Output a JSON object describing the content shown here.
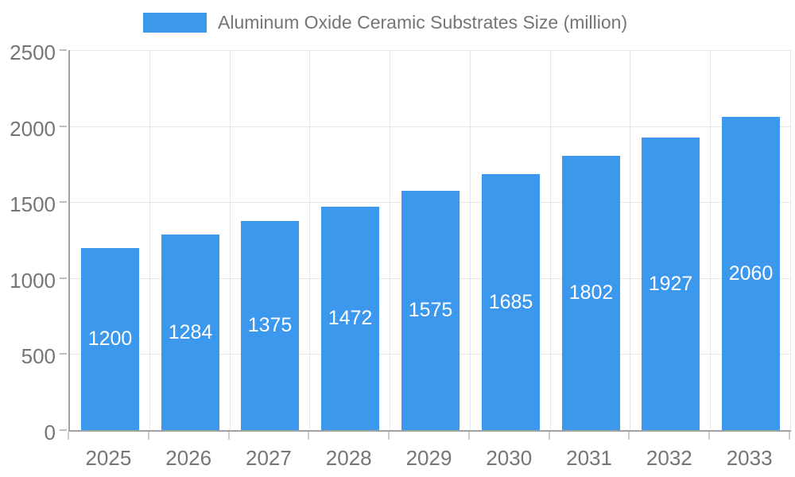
{
  "legend": {
    "label": "Aluminum Oxide Ceramic Substrates Size (million)"
  },
  "colors": {
    "bar": "#3b98ec",
    "bar_label": "#ffffff",
    "grid": "#e6e6e6",
    "axis": "#a2a2a2",
    "tick_text": "#757575",
    "background": "#ffffff"
  },
  "chart_data": {
    "type": "bar",
    "title": "Aluminum Oxide Ceramic Substrates Size (million)",
    "categories": [
      "2025",
      "2026",
      "2027",
      "2028",
      "2029",
      "2030",
      "2031",
      "2032",
      "2033"
    ],
    "values": [
      1200,
      1284,
      1375,
      1472,
      1575,
      1685,
      1802,
      1927,
      2060
    ],
    "xlabel": "",
    "ylabel": "",
    "ylim": [
      0,
      2500
    ],
    "yticks": [
      0,
      500,
      1000,
      1500,
      2000,
      2500
    ],
    "grid": true,
    "legend_position": "top",
    "bar_labels_inside": true
  }
}
